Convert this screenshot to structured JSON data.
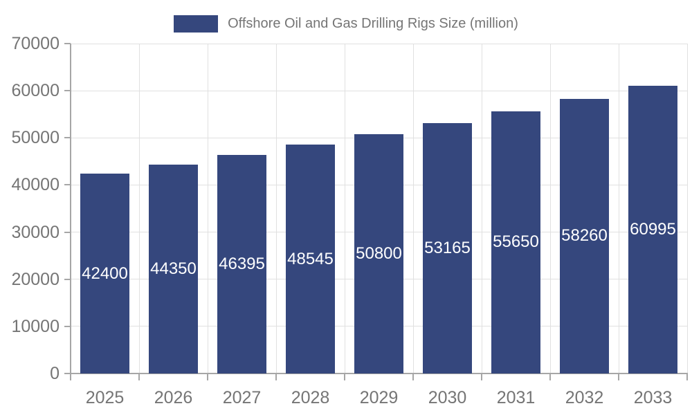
{
  "legend": {
    "label": "Offshore Oil and Gas Drilling Rigs Size (million)"
  },
  "chart_data": {
    "type": "bar",
    "title": "Offshore Oil and Gas Drilling Rigs Size (million)",
    "categories": [
      "2025",
      "2026",
      "2027",
      "2028",
      "2029",
      "2030",
      "2031",
      "2032",
      "2033"
    ],
    "values": [
      42400,
      44350,
      46395,
      48545,
      50800,
      53165,
      55650,
      58260,
      60995
    ],
    "xlabel": "",
    "ylabel": "",
    "ylim": [
      0,
      70000
    ],
    "yticks": [
      0,
      10000,
      20000,
      30000,
      40000,
      50000,
      60000,
      70000
    ],
    "grid": true,
    "legend_position": "top",
    "value_labels": "inside-center",
    "colors": {
      "bar": "#35477d",
      "grid": "#e0e0e0",
      "axis": "#a6a6a6",
      "tick_label": "#757575",
      "value_label": "#ffffff"
    }
  }
}
